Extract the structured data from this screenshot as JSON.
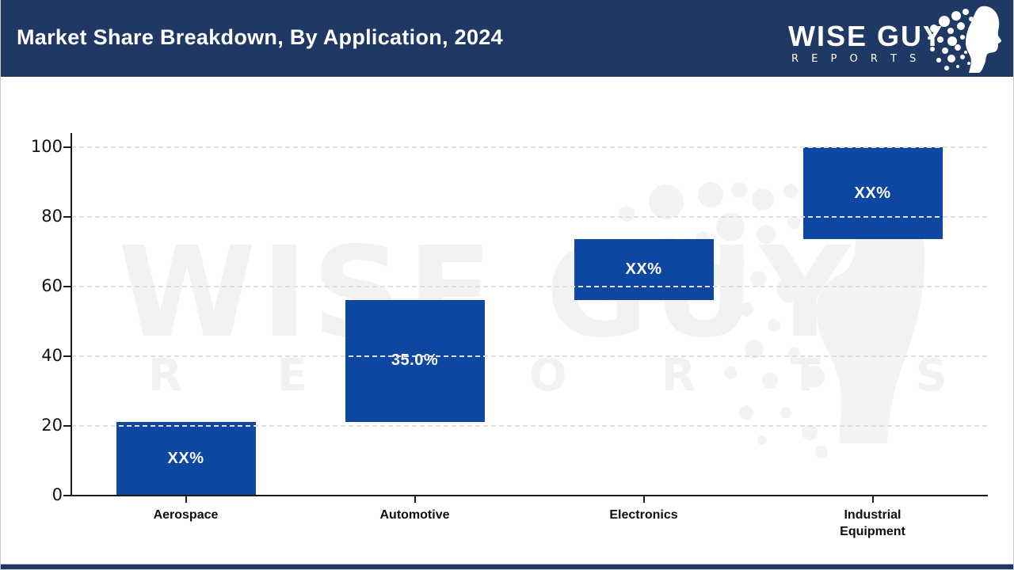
{
  "header": {
    "title": "Market Share Breakdown, By Application, 2024",
    "logo": {
      "wordmark": "WISE GUY",
      "subtext": "R E P O R T S"
    }
  },
  "watermark": {
    "line1": "WISE GUY",
    "line2": "R E P O R T S"
  },
  "chart_data": {
    "type": "bar",
    "variant": "floating-segment-waterfall",
    "title": "Market Share Breakdown, By Application, 2024",
    "categories": [
      "Aerospace",
      "Automotive",
      "Electronics",
      "Industrial Equipment"
    ],
    "segments": [
      {
        "category": "Aerospace",
        "base": 0,
        "top": 21.2,
        "label": "XX%"
      },
      {
        "category": "Automotive",
        "base": 21.2,
        "top": 56.2,
        "label": "35.0%"
      },
      {
        "category": "Electronics",
        "base": 56.2,
        "top": 73.7,
        "label": "XX%"
      },
      {
        "category": "Industrial Equipment",
        "base": 73.7,
        "top": 99.9,
        "label": "XX%"
      }
    ],
    "xlabel": "",
    "ylabel": "",
    "ylim": [
      0,
      104
    ],
    "yticks": [
      0,
      20,
      40,
      60,
      80,
      100
    ],
    "grid": {
      "horizontal": true,
      "style": "dashed",
      "drawn_over_bars": true
    },
    "legend": null
  },
  "colors": {
    "header_bg": "#1f3864",
    "footer_bg": "#1f3864",
    "bar": "#0d47a1",
    "bar_label": "#ffffff",
    "axis": "#1a1a1a",
    "grid": "#e0e0e0",
    "watermark": "#f2f2f4",
    "title_text": "#ffffff"
  }
}
